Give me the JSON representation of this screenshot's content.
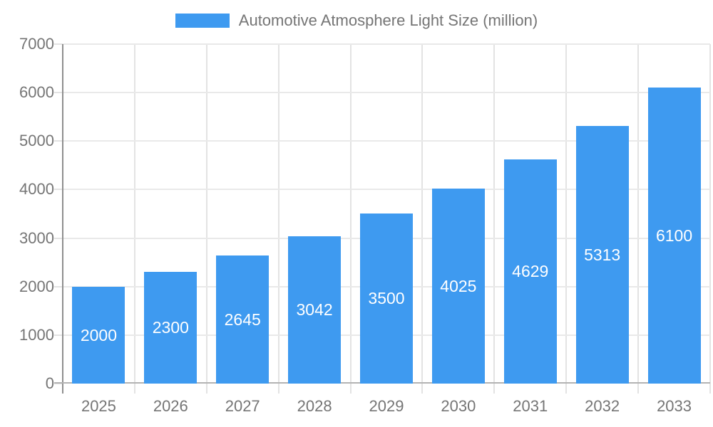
{
  "legend": {
    "label": "Automotive Atmosphere Light Size (million)"
  },
  "chart_data": {
    "type": "bar",
    "title": "Automotive Atmosphere Light Size (million)",
    "series_name": "Automotive Atmosphere Light Size (million)",
    "categories": [
      "2025",
      "2026",
      "2027",
      "2028",
      "2029",
      "2030",
      "2031",
      "2032",
      "2033"
    ],
    "values": [
      2000,
      2300,
      2645,
      3042,
      3500,
      4025,
      4629,
      5313,
      6100
    ],
    "bar_labels": [
      "2000",
      "2300",
      "2645",
      "3042",
      "3500",
      "4025",
      "4629",
      "5313",
      "6100"
    ],
    "xlabel": "",
    "ylabel": "",
    "ylim": [
      0,
      7000
    ],
    "yticks": [
      0,
      1000,
      2000,
      3000,
      4000,
      5000,
      6000,
      7000
    ],
    "grid": true,
    "legend_position": "top",
    "colors": {
      "bar": "#3E9AF0",
      "bar_label": "#FFFFFF",
      "axis_text": "#757575",
      "grid_h": "#E9E9E9",
      "grid_v": "#E3E3E3",
      "y_axis_line": "#8F8F8F",
      "x_axis_line": "#B3B3B3",
      "background": "#FFFFFF"
    }
  }
}
